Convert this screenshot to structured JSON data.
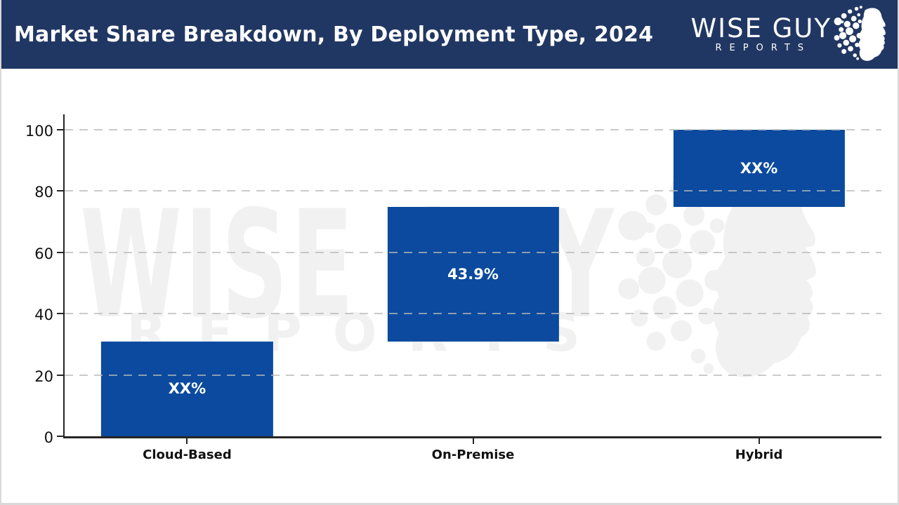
{
  "header": {
    "title": "Market Share Breakdown, By Deployment Type, 2024",
    "bg_color": "#213763",
    "logo": {
      "line1": "WISE GUY",
      "line2": "REPORTS"
    }
  },
  "watermark": {
    "line1": "WISE GUY",
    "line2": "REPORTS"
  },
  "chart_data": {
    "type": "bar",
    "variant": "waterfall",
    "title": "Market Share Breakdown, By Deployment Type, 2024",
    "categories": [
      "Cloud-Based",
      "On-Premise",
      "Hybrid"
    ],
    "bars": [
      {
        "category": "Cloud-Based",
        "start": 0,
        "end": 31.0,
        "value_label": "XX%"
      },
      {
        "category": "On-Premise",
        "start": 31.0,
        "end": 74.9,
        "value_label": "43.9%"
      },
      {
        "category": "Hybrid",
        "start": 74.9,
        "end": 100.0,
        "value_label": "XX%"
      }
    ],
    "xlabel": "",
    "ylabel": "",
    "ylim": [
      0,
      105
    ],
    "yticks": [
      0,
      20,
      40,
      60,
      80,
      100
    ],
    "grid": {
      "axis": "y",
      "style": "dashed",
      "over_bars": true
    },
    "legend": "none",
    "bar_color": "#0b4a9e",
    "value_label_color": "#ffffff"
  }
}
